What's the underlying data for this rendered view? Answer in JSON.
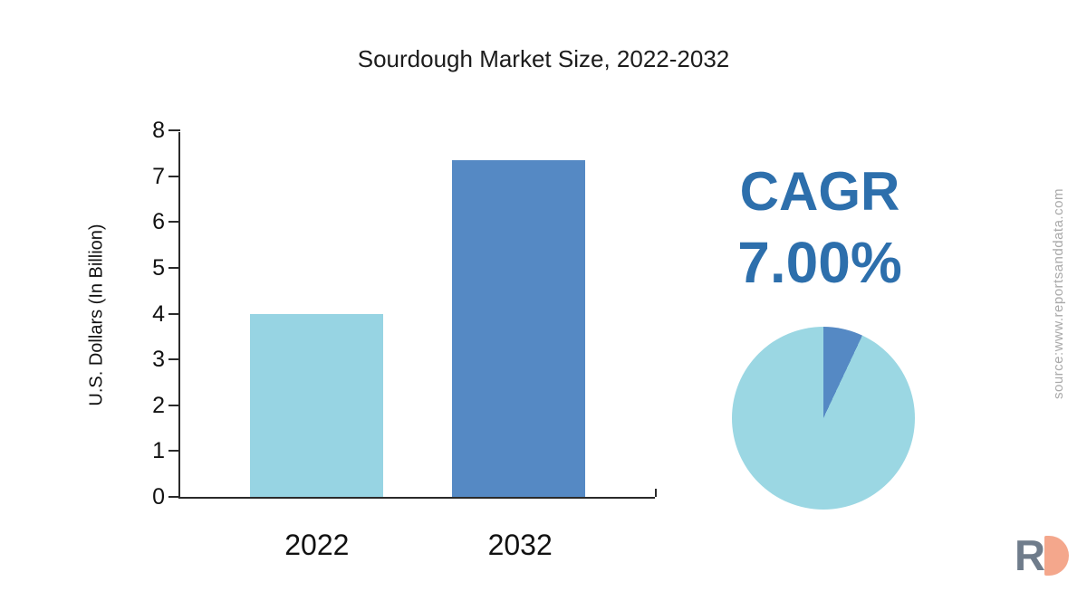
{
  "title": "Sourdough Market Size, 2022-2032",
  "cagr": {
    "label": "CAGR",
    "value": "7.00%",
    "color": "#2d6fac"
  },
  "source": {
    "text": "source:www.reportsanddata.com"
  },
  "logo": {
    "letter": "R"
  },
  "colors": {
    "bar_2022": "#97d4e3",
    "bar_2032": "#5589c4",
    "cagr_text": "#2d6fac",
    "source_text": "#a9a9a9",
    "logo_r": "#6f7c8b",
    "logo_d": "#f4a78c",
    "axis": "#2a2a2a",
    "text": "#1c1c1c"
  },
  "chart_data": [
    {
      "type": "bar",
      "title": "Sourdough Market Size, 2022-2032",
      "categories": [
        "2022",
        "2032"
      ],
      "values": [
        4.0,
        7.35
      ],
      "bar_colors": [
        "#97d4e3",
        "#5589c4"
      ],
      "xlabel": "",
      "ylabel": "U.S. Dollars (In Billion)",
      "ylim": [
        0,
        8
      ],
      "yticks": [
        0,
        1,
        2,
        3,
        4,
        5,
        6,
        7,
        8
      ],
      "grid": false,
      "legend": false
    },
    {
      "type": "pie",
      "title": "CAGR 7.00%",
      "labels": [
        "CAGR share 7%",
        "Remainder 93%"
      ],
      "values": [
        7,
        93
      ],
      "colors": [
        "#5589c4",
        "#9bd7e3"
      ],
      "start_angle_deg": 0,
      "direction": "clockwise",
      "legend": false
    }
  ]
}
